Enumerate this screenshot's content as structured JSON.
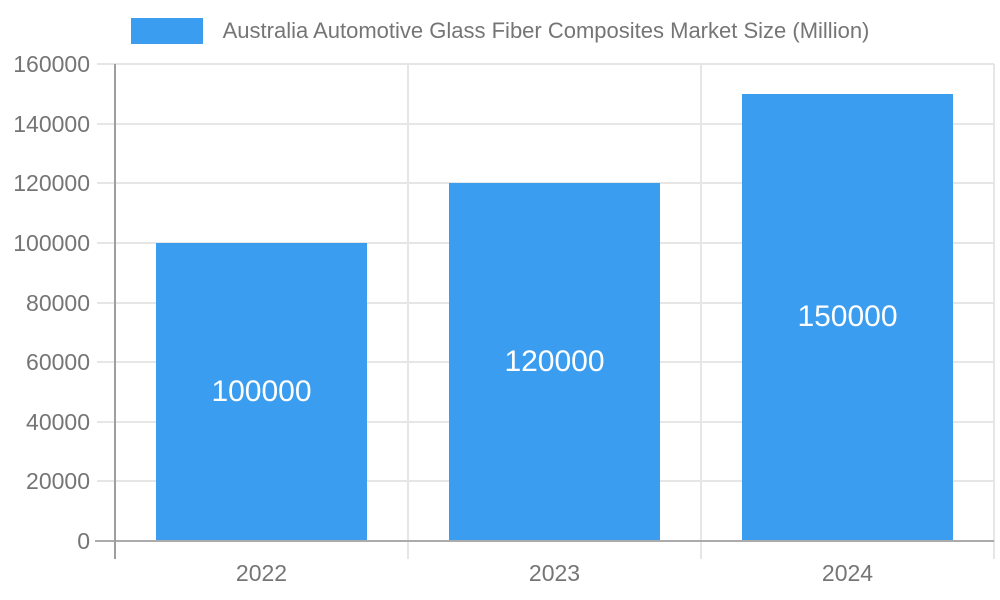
{
  "chart_data": {
    "type": "bar",
    "title": "Australia Automotive Glass Fiber Composites Market Size (Million)",
    "legend": {
      "position": "top",
      "label": "Australia Automotive Glass Fiber Composites Market Size (Million)"
    },
    "categories": [
      "2022",
      "2023",
      "2024"
    ],
    "series": [
      {
        "name": "Australia Automotive Glass Fiber Composites Market Size (Million)",
        "values": [
          100000,
          120000,
          150000
        ]
      }
    ],
    "bar_value_labels": [
      "100000",
      "120000",
      "150000"
    ],
    "y_ticks": [
      0,
      20000,
      40000,
      60000,
      80000,
      100000,
      120000,
      140000,
      160000
    ],
    "y_tick_labels": [
      "0",
      "20000",
      "40000",
      "60000",
      "80000",
      "100000",
      "120000",
      "140000",
      "160000"
    ],
    "xlabel": "",
    "ylabel": "",
    "ylim": [
      0,
      160000
    ],
    "grid": true,
    "colors": {
      "bar": "#3a9def",
      "bar_label_text": "#ffffff",
      "gridline": "#e6e6e6",
      "x_axis_line": "#ababab",
      "y_axis_line": "#9e9e9e",
      "tick_text": "#757575",
      "legend_text": "#757575",
      "background": "#ffffff"
    }
  }
}
